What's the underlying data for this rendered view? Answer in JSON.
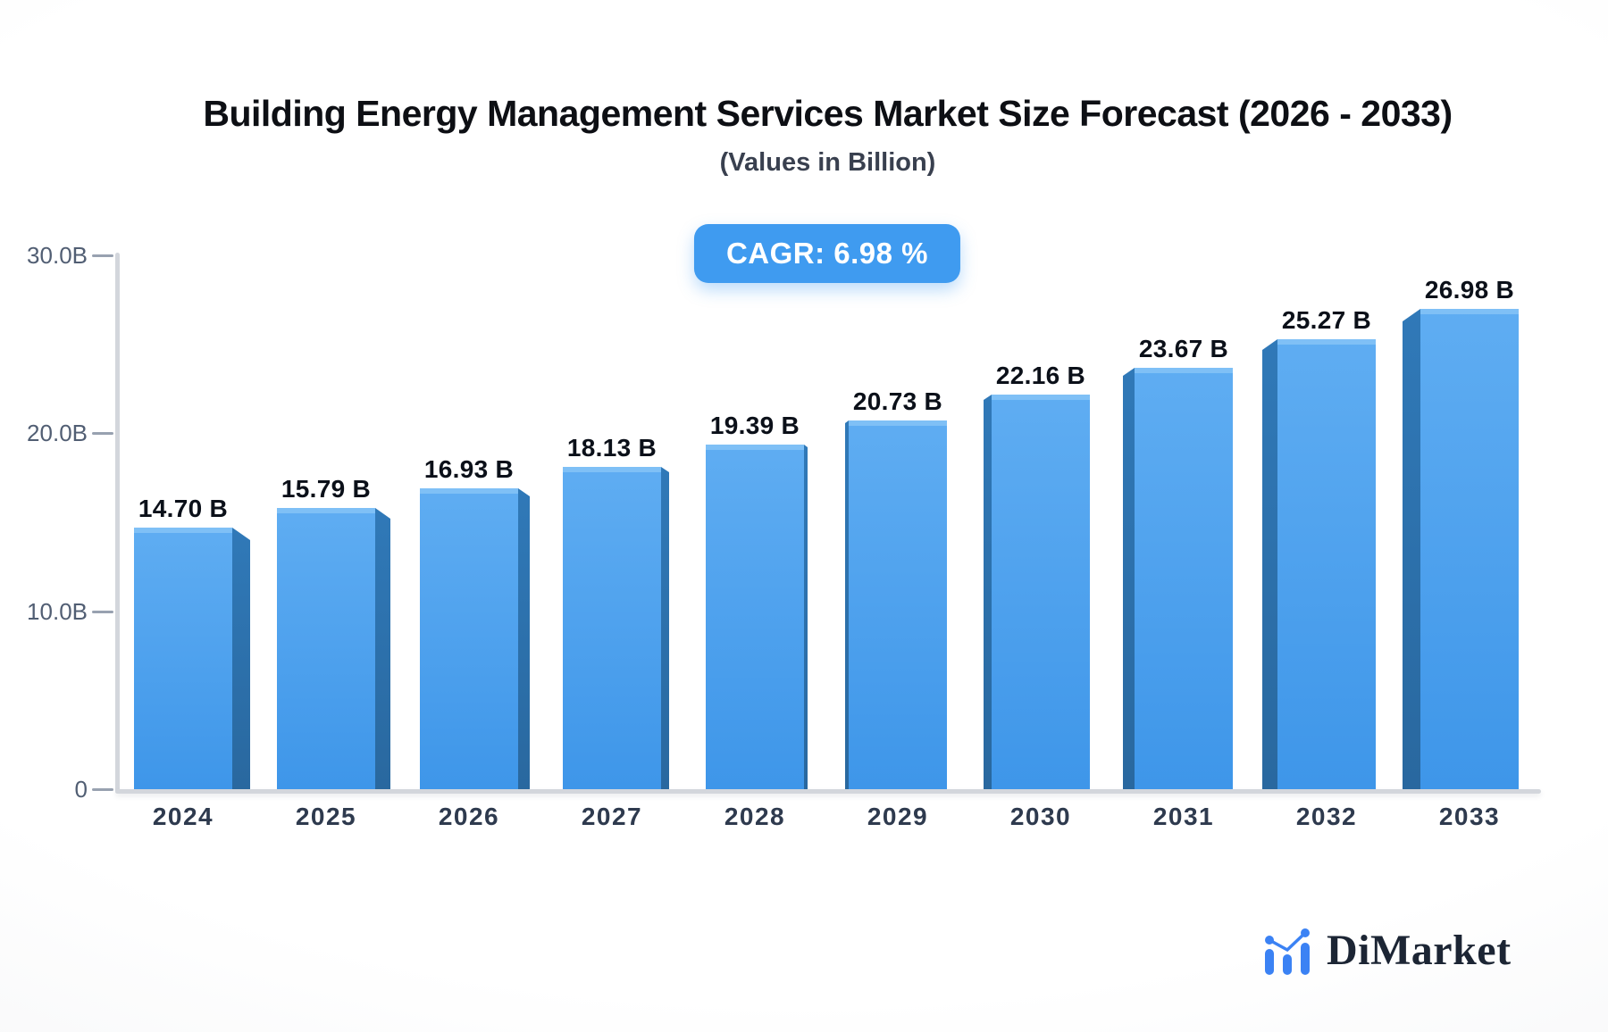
{
  "title": "Building Energy Management Services Market Size Forecast (2026 - 2033)",
  "subtitle": "(Values in Billion)",
  "badge": {
    "label": "CAGR: 6.98 %"
  },
  "chart_data": {
    "type": "bar",
    "title": "Building Energy Management Services Market Size Forecast (2026 - 2033)",
    "subtitle": "(Values in Billion)",
    "categories": [
      "2024",
      "2025",
      "2026",
      "2027",
      "2028",
      "2029",
      "2030",
      "2031",
      "2032",
      "2033"
    ],
    "values": [
      14.7,
      15.79,
      16.93,
      18.13,
      19.39,
      20.73,
      22.16,
      23.67,
      25.27,
      26.98
    ],
    "value_labels": [
      "14.70 B",
      "15.79 B",
      "16.93 B",
      "18.13 B",
      "19.39 B",
      "20.73 B",
      "22.16 B",
      "23.67 B",
      "25.27 B",
      "26.98 B"
    ],
    "cagr": "6.98 %",
    "xlabel": "",
    "ylabel": "",
    "ylim": [
      0,
      30
    ],
    "yticks": [
      {
        "value": 30,
        "label": "30.0B"
      },
      {
        "value": 20,
        "label": "20.0B"
      },
      {
        "value": 10,
        "label": "10.0B"
      },
      {
        "value": 0,
        "label": "0"
      }
    ],
    "grid": false,
    "legend": false,
    "bar_style": "3d-extruded"
  },
  "colors": {
    "badge_bg": "#3f9bf0",
    "bar_top_strip": "#7fc0f6",
    "bar_main_top": "#5fadf2",
    "bar_main_bottom": "#3e96e9",
    "bar_side_top": "#3079b8",
    "bar_side_bottom": "#29689f",
    "axis_line": "#d3d6dc",
    "tick_color": "#98a1b0",
    "y_text": "#515e73",
    "x_text": "#2e3a4e",
    "value_text": "#0b1019",
    "logo_blue": "#3b82f4",
    "logo_text": "#1c2534"
  },
  "logo": {
    "text": "DiMarket",
    "icon": "mini-bar-chart-trend-icon"
  }
}
